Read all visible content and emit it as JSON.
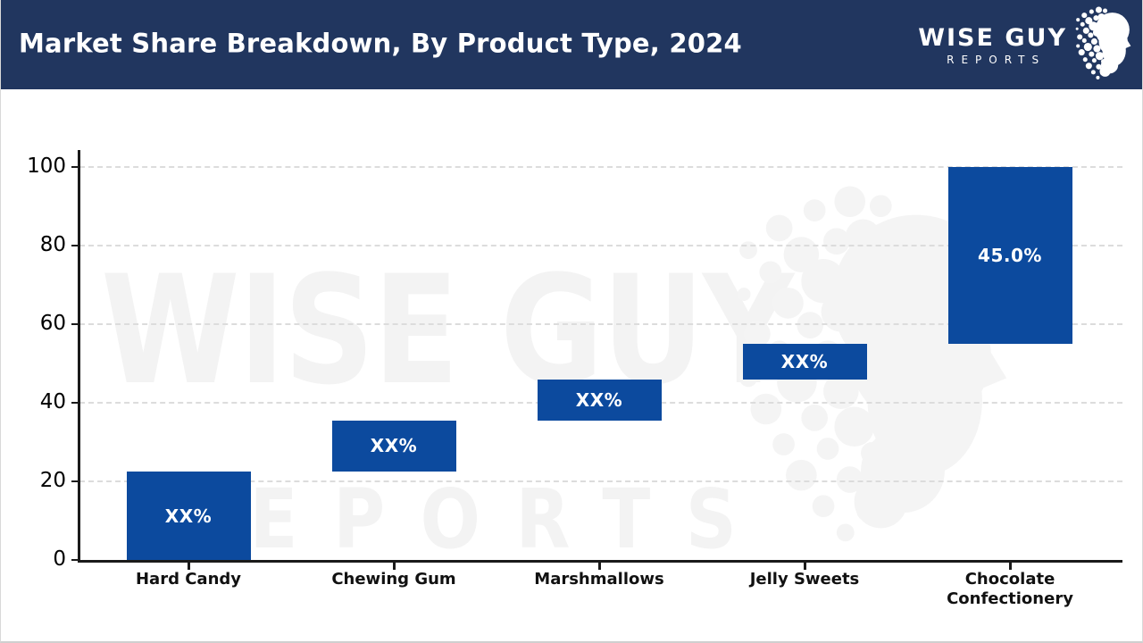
{
  "header": {
    "title": "Market Share Breakdown, By Product Type, 2024",
    "background_color": "#21365f",
    "brand": {
      "line1": "WISE GUY",
      "line2": "REPORTS"
    }
  },
  "watermark": {
    "line1": "WISE GUY",
    "line2": "REPORTS"
  },
  "chart_data": {
    "type": "bar",
    "subtype": "waterfall",
    "title": "Market Share Breakdown, By Product Type, 2024",
    "categories": [
      "Hard Candy",
      "Chewing Gum",
      "Marshmallows",
      "Jelly Sweets",
      "Chocolate Confectionery"
    ],
    "segments": [
      {
        "category": "Hard Candy",
        "start": 0,
        "end": 22.5,
        "label": "XX%"
      },
      {
        "category": "Chewing Gum",
        "start": 22.5,
        "end": 35.5,
        "label": "XX%"
      },
      {
        "category": "Marshmallows",
        "start": 35.5,
        "end": 46,
        "label": "XX%"
      },
      {
        "category": "Jelly Sweets",
        "start": 46,
        "end": 55,
        "label": "XX%"
      },
      {
        "category": "Chocolate Confectionery",
        "start": 55,
        "end": 100,
        "label": "45.0%"
      }
    ],
    "yticks": [
      0,
      20,
      40,
      60,
      80,
      100
    ],
    "ylim": [
      0,
      104
    ],
    "xlabel": "",
    "ylabel": "",
    "bar_color": "#0c4a9e",
    "grid": "horizontal-dashed",
    "grid_color": "#dcdcdc",
    "legend": "none"
  }
}
